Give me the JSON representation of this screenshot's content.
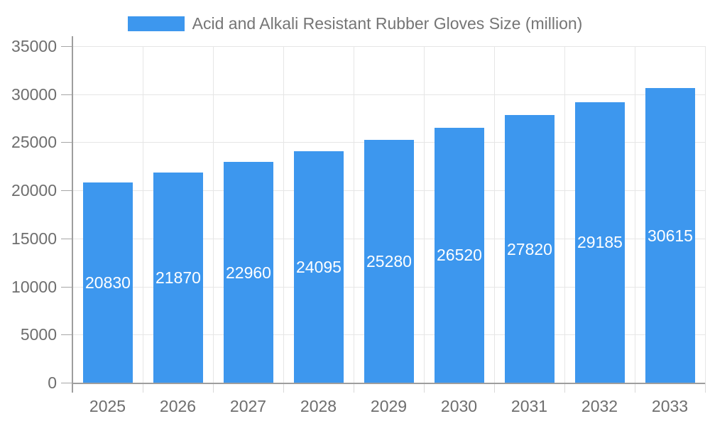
{
  "legend": {
    "items": [
      {
        "label": "Acid and Alkali Resistant Rubber Gloves Size (million)",
        "color": "#3d97ee"
      }
    ]
  },
  "chart_data": {
    "type": "bar",
    "title": "Acid and Alkali Resistant Rubber Gloves Size (million)",
    "categories": [
      "2025",
      "2026",
      "2027",
      "2028",
      "2029",
      "2030",
      "2031",
      "2032",
      "2033"
    ],
    "series": [
      {
        "name": "Acid and Alkali Resistant Rubber Gloves Size (million)",
        "values": [
          20830,
          21870,
          22960,
          24095,
          25280,
          26520,
          27820,
          29185,
          30615
        ]
      }
    ],
    "value_labels": [
      "20830",
      "21870",
      "22960",
      "24095",
      "25280",
      "26520",
      "27820",
      "29185",
      "30615"
    ],
    "xlabel": "",
    "ylabel": "",
    "ylim": [
      0,
      35000
    ],
    "ytick_step": 5000,
    "ytick_labels": [
      "0",
      "5000",
      "10000",
      "15000",
      "20000",
      "25000",
      "30000",
      "35000"
    ],
    "grid": true,
    "legend_position": "top-center",
    "value_labels_position": "inside-middle"
  },
  "colors": {
    "bar": "#3d97ee",
    "bar_label": "#ffffff",
    "legend_text": "#757575",
    "axis_label": "#6e6e6e",
    "axis_line": "#9e9e9e",
    "gridline": "#e6e6e6",
    "x_tick": "#d9d9d9",
    "y_tick": "#a6a6a6",
    "background": "#ffffff"
  }
}
